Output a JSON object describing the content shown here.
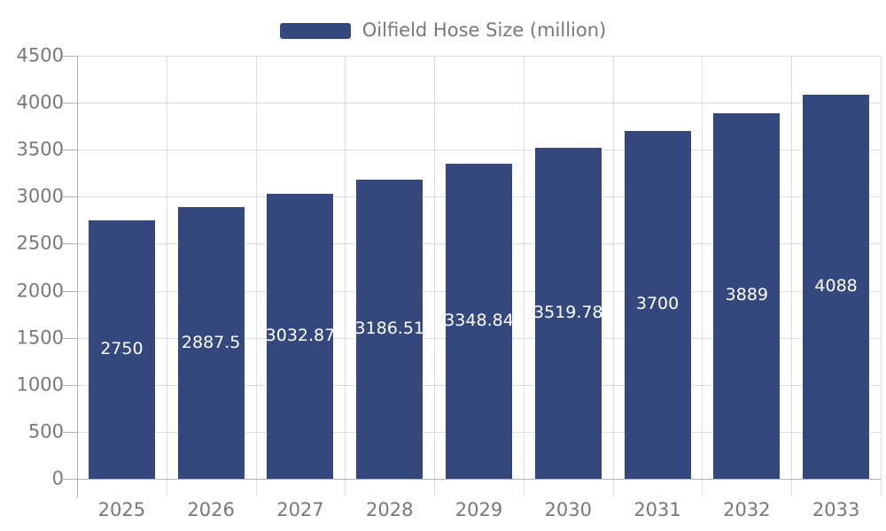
{
  "legend": {
    "label": "Oilfield Hose Size (million)"
  },
  "chart_data": {
    "type": "bar",
    "title": "Oilfield Hose Size (million)",
    "categories": [
      "2025",
      "2026",
      "2027",
      "2028",
      "2029",
      "2030",
      "2031",
      "2032",
      "2033"
    ],
    "series": [
      {
        "name": "Oilfield Hose Size (million)",
        "values": [
          2750,
          2887.5,
          3032.87,
          3186.51,
          3348.84,
          3519.78,
          3700,
          3889,
          4088
        ]
      }
    ],
    "bar_labels": [
      "2750",
      "2887.5",
      "3032.87",
      "3186.51",
      "3348.84",
      "3519.78",
      "3700",
      "3889",
      "4088"
    ],
    "xlabel": "",
    "ylabel": "",
    "ylim": [
      0,
      4500
    ],
    "ytick_interval": 500,
    "ytick_labels": [
      "0",
      "500",
      "1000",
      "1500",
      "2000",
      "2500",
      "3000",
      "3500",
      "4000",
      "4500"
    ],
    "grid": "horizontal and vertical light gridlines",
    "legend_position": "top-center",
    "colors": {
      "bar": "#35487E",
      "bar_value_label": "#FFFFFF",
      "axis_text": "#76787D",
      "gridline": "#E0E0E0",
      "axis_line": "#B0B0BA"
    }
  }
}
